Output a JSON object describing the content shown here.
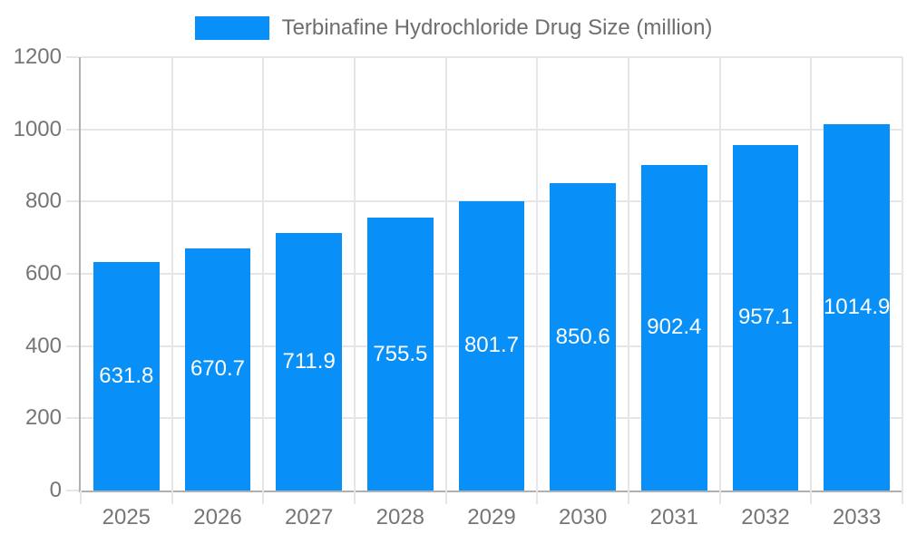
{
  "legend": {
    "swatch": "blue-series-swatch"
  },
  "chart_data": {
    "type": "bar",
    "title": "Terbinafine Hydrochloride Drug Size (million)",
    "categories": [
      "2025",
      "2026",
      "2027",
      "2028",
      "2029",
      "2030",
      "2031",
      "2032",
      "2033"
    ],
    "values": [
      631.8,
      670.7,
      711.9,
      755.5,
      801.7,
      850.6,
      902.4,
      957.1,
      1014.9
    ],
    "value_labels": [
      "631.8",
      "670.7",
      "711.9",
      "755.5",
      "801.7",
      "850.6",
      "902.4",
      "957.1",
      "1014.9"
    ],
    "xlabel": "",
    "ylabel": "",
    "ylim": [
      0,
      1200
    ],
    "y_ticks": [
      0,
      200,
      400,
      600,
      800,
      1000,
      1200
    ],
    "grid": true,
    "legend_position": "top",
    "colors": {
      "bar": "#0890f8",
      "grid": "#e6e6e6",
      "axis": "#b0b0b0",
      "tick_text": "#757575",
      "legend_text": "#6e6e6e",
      "value_label": "#ffffff",
      "background": "#ffffff"
    }
  }
}
